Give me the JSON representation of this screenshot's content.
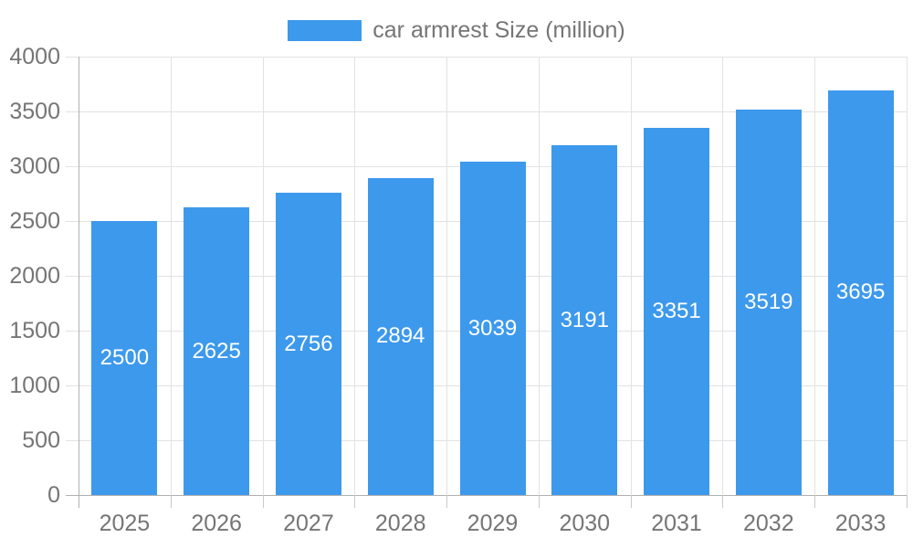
{
  "legend": {
    "label": "car armrest Size (million)"
  },
  "colors": {
    "bar": "#3D99EC",
    "grid": "#e2e2e2",
    "axis": "#b0b0b0",
    "tick": "#c9c9c9",
    "text": "#757575",
    "value_label": "#ffffff",
    "background": "#ffffff"
  },
  "chart_data": {
    "type": "bar",
    "title": "car armrest Size (million)",
    "categories": [
      "2025",
      "2026",
      "2027",
      "2028",
      "2029",
      "2030",
      "2031",
      "2032",
      "2033"
    ],
    "series": [
      {
        "name": "car armrest Size (million)",
        "values": [
          2500,
          2625,
          2756,
          2894,
          3039,
          3191,
          3351,
          3519,
          3695
        ]
      }
    ],
    "xlabel": "",
    "ylabel": "",
    "ylim": [
      0,
      4000
    ],
    "y_ticks": [
      0,
      500,
      1000,
      1500,
      2000,
      2500,
      3000,
      3500,
      4000
    ],
    "grid": true,
    "legend_position": "top",
    "value_labels": "inside-middle"
  }
}
